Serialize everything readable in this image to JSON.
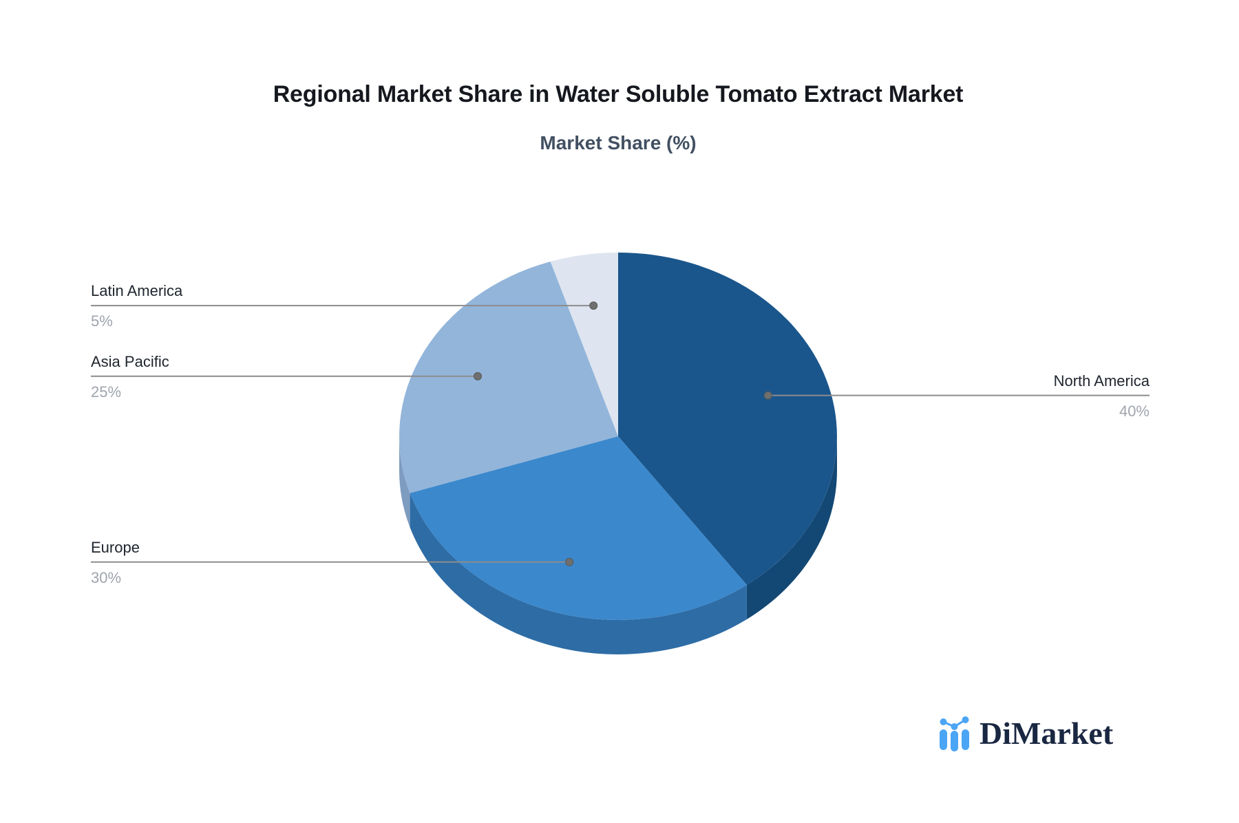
{
  "title": "Regional Market Share in Water Soluble Tomato Extract Market",
  "subtitle": "Market Share (%)",
  "brand": {
    "name": "DiMarket",
    "icon": "bar-chart-trend-icon",
    "icon_color": "#4BA5F5",
    "text_color": "#1A2742"
  },
  "style": {
    "leader_line_color": "#8C8C8C",
    "leader_dot_color": "#6F6F6F",
    "label_color": "#20262F",
    "percent_color": "#9FA4AD"
  },
  "chart_data": {
    "type": "pie",
    "title": "Regional Market Share in Water Soluble Tomato Extract Market",
    "subtitle": "Market Share (%)",
    "unit": "%",
    "direction": "clockwise",
    "start_angle_deg": 0,
    "effect": "3d",
    "legend_position": "callout-labels",
    "slices": [
      {
        "label": "North America",
        "value": 40,
        "display": "40%",
        "color": "#1A568C",
        "side_color": "#134874"
      },
      {
        "label": "Europe",
        "value": 30,
        "display": "30%",
        "color": "#3B88CC",
        "side_color": "#2E6CA5"
      },
      {
        "label": "Asia Pacific",
        "value": 25,
        "display": "25%",
        "color": "#93B5DA",
        "side_color": "#7E9CC0"
      },
      {
        "label": "Latin America",
        "value": 5,
        "display": "5%",
        "color": "#DEE5F0",
        "side_color": "#C6D2E4"
      }
    ]
  }
}
